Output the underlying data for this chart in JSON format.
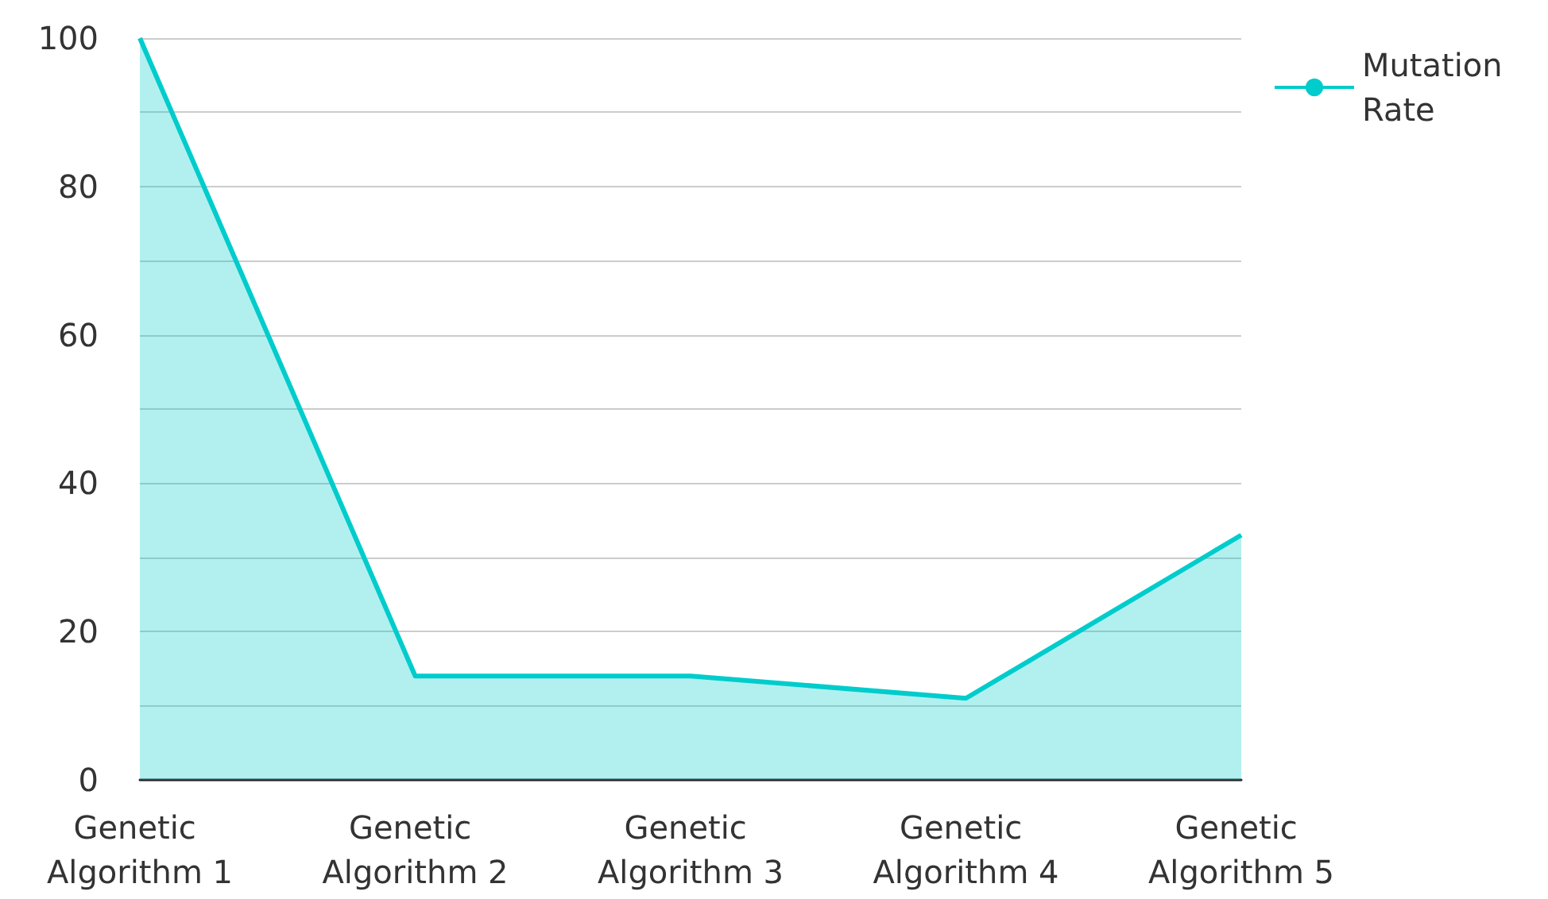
{
  "chart_data": {
    "type": "area",
    "categories": [
      "Genetic Algorithm 1",
      "Genetic Algorithm 2",
      "Genetic Algorithm 3",
      "Genetic Algorithm 4",
      "Genetic Algorithm 5"
    ],
    "series": [
      {
        "name": "Mutation Rate",
        "color": "#00cccc",
        "values": [
          100,
          14,
          14,
          11,
          33
        ]
      }
    ],
    "ylim": [
      0,
      100
    ],
    "yticks": [
      0,
      {
        "value": 10,
        "label": null
      },
      20,
      {
        "value": 30,
        "label": null
      },
      40,
      {
        "value": 50,
        "label": null
      },
      60,
      {
        "value": 70,
        "label": null
      },
      80,
      {
        "value": 90,
        "label": null
      },
      100
    ],
    "grid": "y",
    "legend": "top right",
    "marker": "none",
    "line_style": "solid"
  }
}
